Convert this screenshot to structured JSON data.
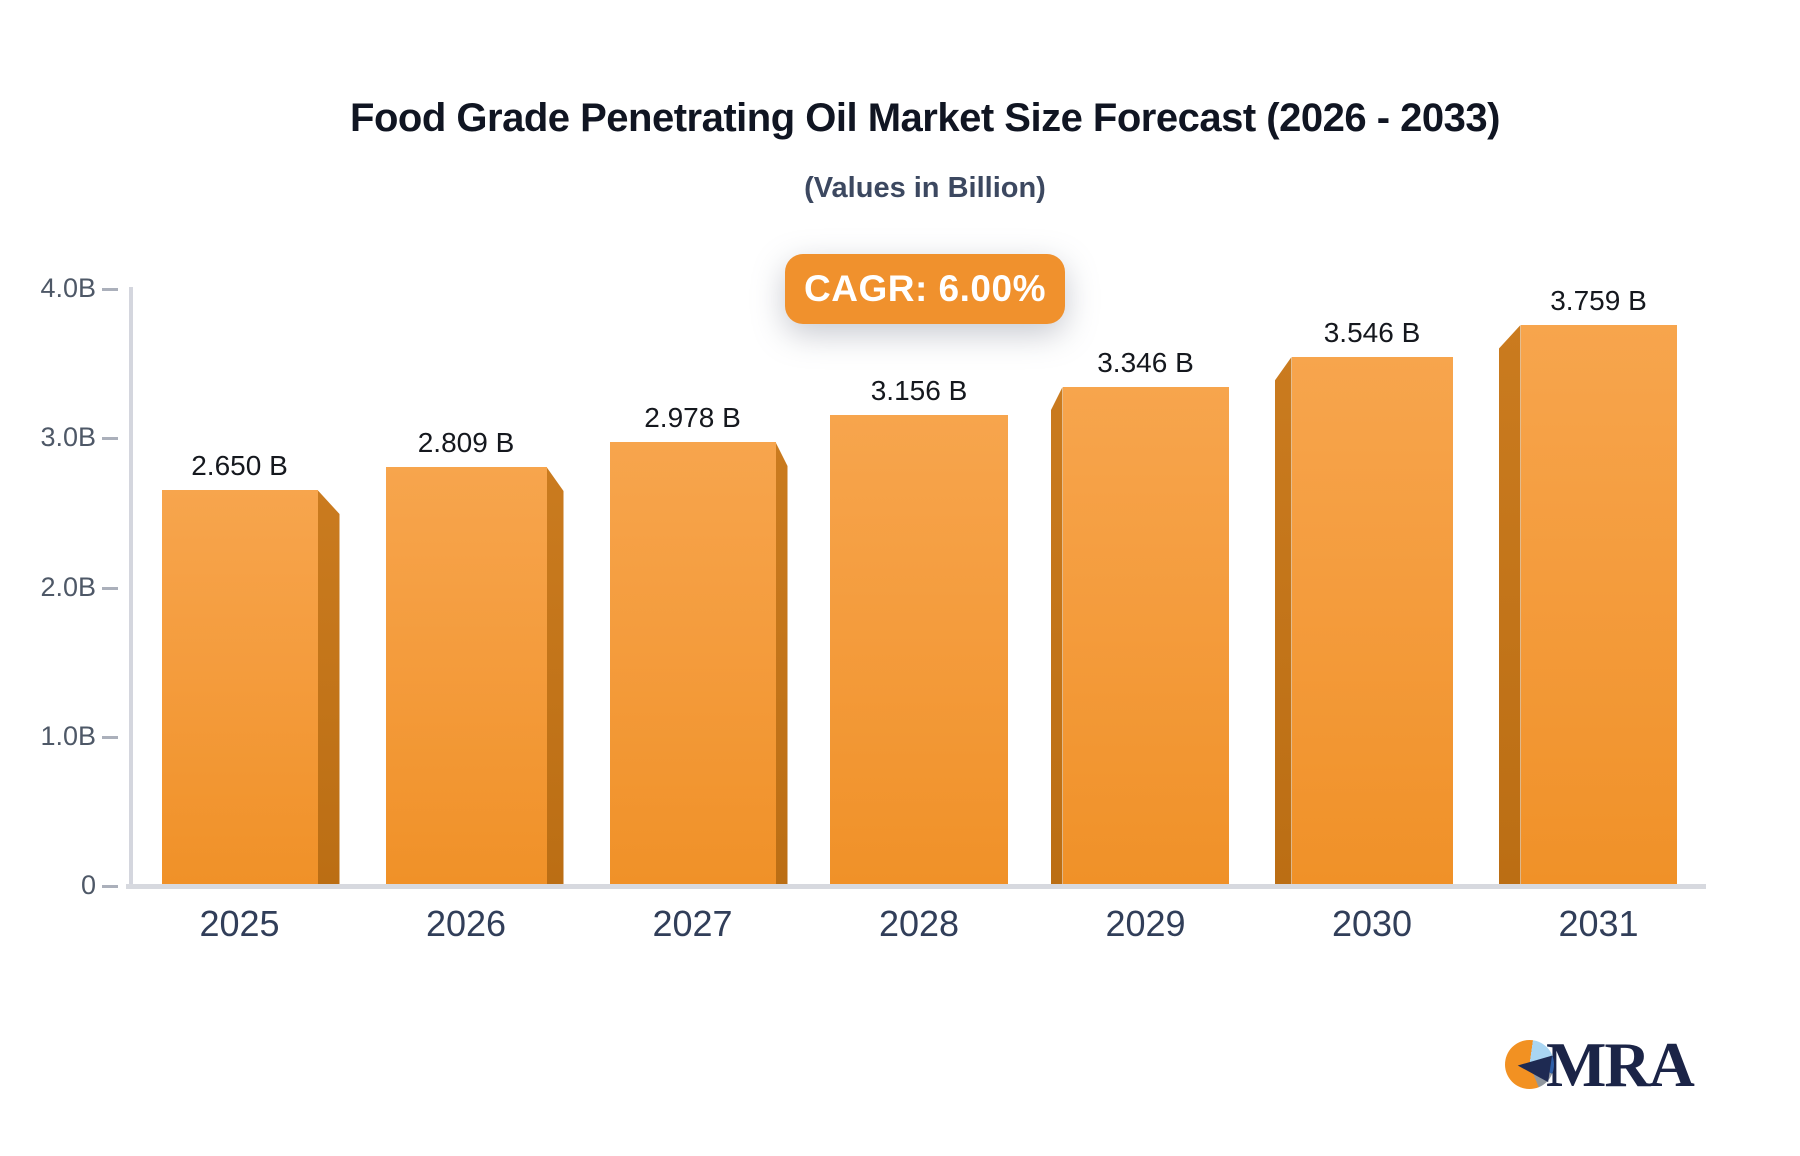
{
  "header": {
    "title": "Food Grade Penetrating Oil Market Size Forecast (2026 - 2033)",
    "subtitle": "(Values in Billion)"
  },
  "badge": {
    "label": "CAGR: 6.00%"
  },
  "logo": {
    "text": "MRA"
  },
  "chart_data": {
    "type": "bar",
    "title": "Food Grade Penetrating Oil Market Size Forecast (2026 - 2033)",
    "subtitle": "(Values in Billion)",
    "annotation": "CAGR: 6.00%",
    "categories": [
      "2025",
      "2026",
      "2027",
      "2028",
      "2029",
      "2030",
      "2031"
    ],
    "values": [
      2.65,
      2.809,
      2.978,
      3.156,
      3.346,
      3.546,
      3.759
    ],
    "value_labels": [
      "2.650 B",
      "2.809 B",
      "2.978 B",
      "3.156 B",
      "3.346 B",
      "3.546 B",
      "3.759 B"
    ],
    "unit": "Billion",
    "xlabel": "",
    "ylabel": "",
    "ylim": [
      0,
      4.0
    ],
    "yticks": [
      {
        "label": "4.0B",
        "value": 4.0
      },
      {
        "label": "3.0B",
        "value": 3.0
      },
      {
        "label": "2.0B",
        "value": 2.0
      },
      {
        "label": "1.0B",
        "value": 1.0
      },
      {
        "label": "0",
        "value": 0.0
      }
    ],
    "grid": false,
    "legend_position": "none",
    "bar_style": "3d-extruded",
    "colors": {
      "bar_face_top": "#f7a54d",
      "bar_face_bottom": "#f09128",
      "bar_side": "#bf7218",
      "badge_background": "#f0912d",
      "badge_text": "#ffffff",
      "title_text": "#101522",
      "subtitle_text": "#3c4860",
      "axis_line": "#d4d6de",
      "ytick_text": "#4e5867",
      "xtick_text": "#313e59",
      "value_label_text": "#15181e",
      "logo_navy": "#1b2447",
      "logo_orange": "#f29122",
      "logo_lightblue": "#a9d5f2",
      "logo_blue": "#2f5fa8",
      "logo_gray": "#90979e"
    }
  }
}
